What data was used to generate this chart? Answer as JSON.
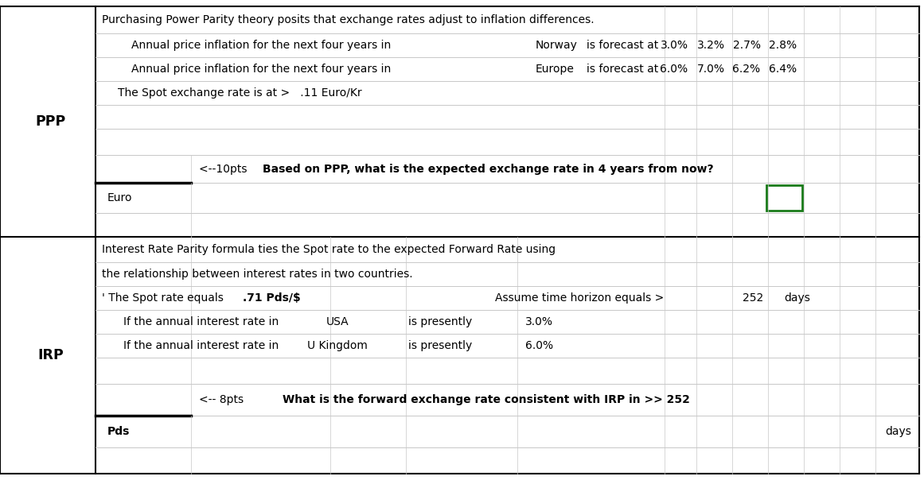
{
  "bg_color": "#ffffff",
  "border_color": "#000000",
  "grid_color": "#c8c8c8",
  "green_color": "#1a7a1a",
  "ppp_label": "PPP",
  "irp_label": "IRP",
  "ppp_line1": "Purchasing Power Parity theory posits that exchange rates adjust to inflation differences.",
  "ppp_line2_pre": "Annual price inflation for the next four years in",
  "ppp_line2_country": "Norway",
  "ppp_line2_mid": "is forecast at",
  "ppp_line2_vals": [
    "3.0%",
    "3.2%",
    "2.7%",
    "2.8%"
  ],
  "ppp_line3_pre": "Annual price inflation for the next four years in",
  "ppp_line3_country": "Europe",
  "ppp_line3_mid": "is forecast at",
  "ppp_line3_vals": [
    "6.0%",
    "7.0%",
    "6.2%",
    "6.4%"
  ],
  "ppp_line4": "The Spot exchange rate is at >   .11 Euro/Kr",
  "ppp_question_prefix": "<--10pts  ",
  "ppp_question_bold": "Based on PPP, what is the expected exchange rate in 4 years from now?",
  "ppp_answer_label": "Euro",
  "irp_line1": "Interest Rate Parity formula ties the Spot rate to the expected Forward Rate using",
  "irp_line2": "the relationship between interest rates in two countries.",
  "irp_spot_pre": "' The Spot rate equals  ",
  "irp_spot_bold": ".71 Pds/$",
  "irp_assume_pre": "Assume time horizon equals > ",
  "irp_assume_val": "252",
  "irp_assume_unit": "days",
  "irp_usa_pre": "If the annual interest rate in",
  "irp_usa_country": "USA",
  "irp_usa_mid": "is presently",
  "irp_usa_val": "3.0%",
  "irp_uk_pre": "If the annual interest rate in",
  "irp_uk_country": "U Kingdom",
  "irp_uk_mid": "is presently",
  "irp_uk_val": "6.0%",
  "irp_question_prefix": "<-- 8pts   ",
  "irp_question_bold": "What is the forward exchange rate consistent with IRP in >> 252",
  "irp_answer_label": "Pds",
  "irp_answer_suffix": "days",
  "font_size": 10.0,
  "bold_font_size": 10.0,
  "label_font_size": 12.5
}
